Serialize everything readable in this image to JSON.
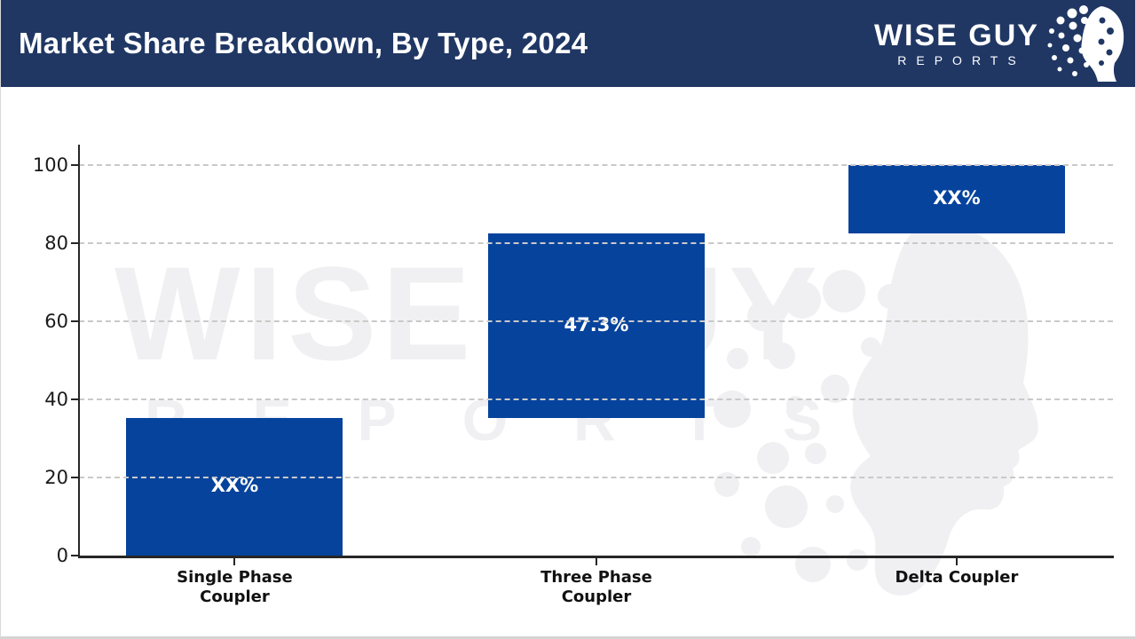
{
  "header": {
    "title": "Market Share Breakdown, By Type, 2024",
    "logo": {
      "line1": "WISE GUY",
      "line2": "REPORTS"
    }
  },
  "watermark": {
    "line1": "WISE GUY",
    "line2": "REPORTS"
  },
  "chart_data": {
    "type": "bar",
    "subtype": "floating-segment-waterfall",
    "title": "Market Share Breakdown, By Type, 2024",
    "categories": [
      "Single Phase\nCoupler",
      "Three Phase\nCoupler",
      "Delta Coupler"
    ],
    "segments": [
      {
        "category": "Single Phase Coupler",
        "start": 0,
        "end": 35.3,
        "label": "XX%"
      },
      {
        "category": "Three Phase Coupler",
        "start": 35.3,
        "end": 82.6,
        "label": "47.3%"
      },
      {
        "category": "Delta Coupler",
        "start": 82.6,
        "end": 100,
        "label": "XX%"
      }
    ],
    "xlabel": "",
    "ylabel": "",
    "ylim": [
      0,
      100
    ],
    "yticks": [
      0,
      20,
      40,
      60,
      80,
      100
    ],
    "grid": "horizontal-dashed-above-bars",
    "legend": "none",
    "bar_color": "#06439D",
    "bar_label_color": "#ffffff"
  },
  "colors": {
    "header_bg": "#203764",
    "axis": "#262626",
    "gridline": "#c9c9c9",
    "watermark": "#f0f0f2",
    "frame_border": "#d9d9d9"
  }
}
